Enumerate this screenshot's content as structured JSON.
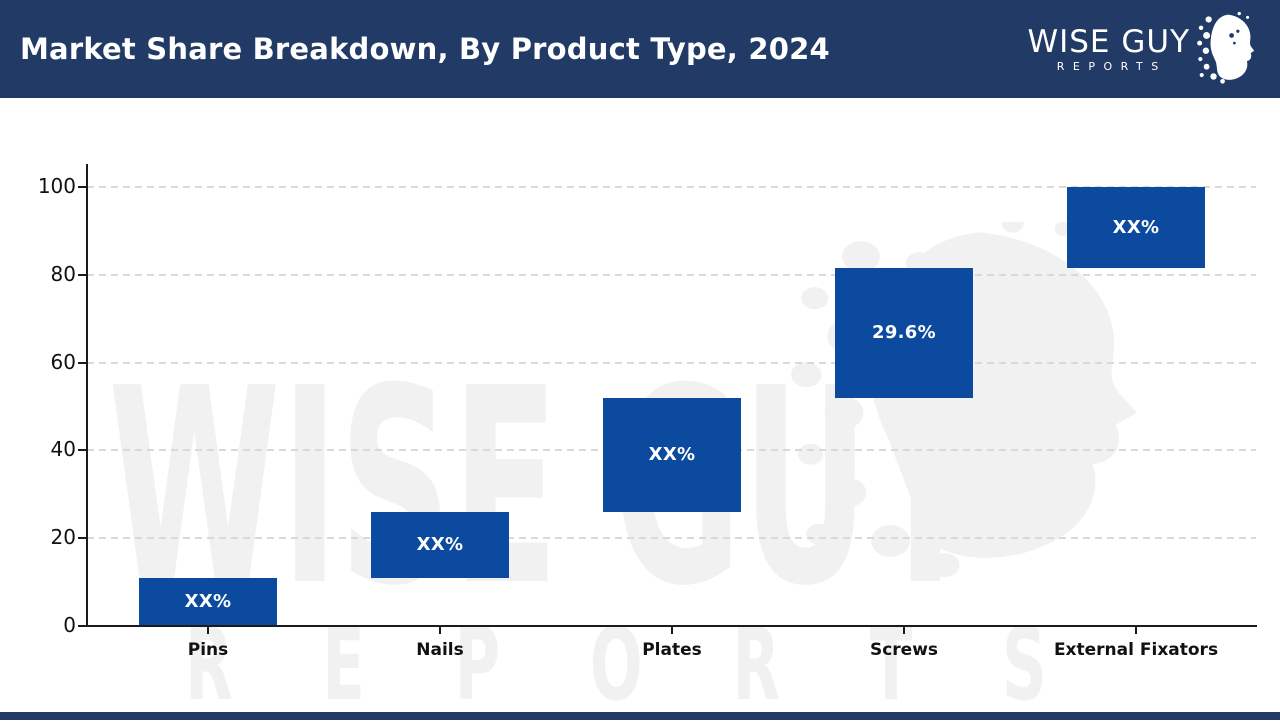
{
  "header": {
    "title": "Market Share Breakdown, By Product Type, 2024",
    "bg_color": "#213a66",
    "logo": {
      "line1": "WISE GUY",
      "line2": "REPORTS"
    }
  },
  "watermark": {
    "line1": "WISE GUY",
    "line2": "REPORTS"
  },
  "chart_data": {
    "type": "bar",
    "subtype": "waterfall",
    "title": "Market Share Breakdown, By Product Type, 2024",
    "categories": [
      "Pins",
      "Nails",
      "Plates",
      "Screws",
      "External Fixators"
    ],
    "segments": [
      {
        "category": "Pins",
        "start": 0,
        "end": 11,
        "label": "XX%"
      },
      {
        "category": "Nails",
        "start": 11,
        "end": 26,
        "label": "XX%"
      },
      {
        "category": "Plates",
        "start": 26,
        "end": 52,
        "label": "XX%"
      },
      {
        "category": "Screws",
        "start": 52,
        "end": 81.6,
        "label": "29.6%"
      },
      {
        "category": "External Fixators",
        "start": 81.6,
        "end": 100,
        "label": "XX%"
      }
    ],
    "yticks": [
      0,
      20,
      40,
      60,
      80,
      100
    ],
    "ylim": [
      0,
      105
    ],
    "xlabel": "",
    "ylabel": "",
    "grid": true,
    "legend": false,
    "bar_color": "#0b4a9e",
    "gridline_color": "#d9d9d9",
    "axis_color": "#1a1a1a"
  },
  "footer": {
    "bg_color": "#213a66"
  }
}
